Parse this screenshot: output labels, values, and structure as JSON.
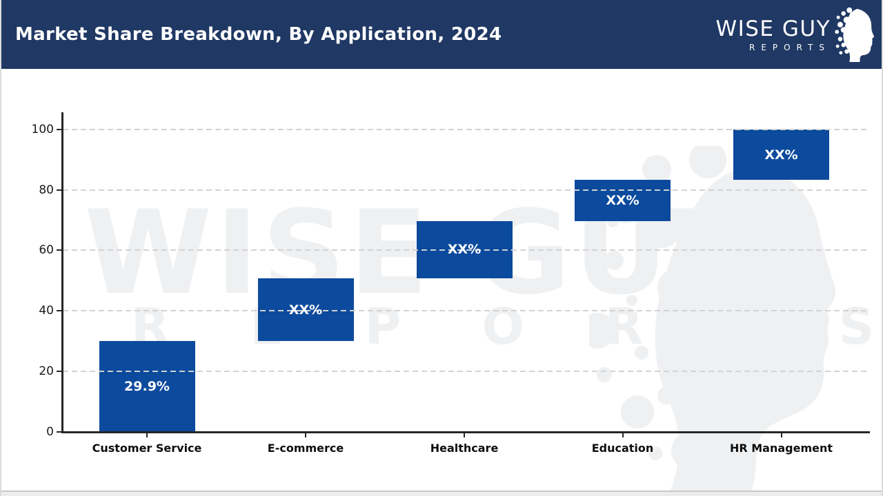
{
  "header": {
    "title": "Market Share Breakdown, By Application, 2024",
    "brand": {
      "name": "WISE GUY",
      "sub": "REPORTS"
    }
  },
  "watermark": {
    "line1": "WISE GUY",
    "line2": "R E P O R T S"
  },
  "chart_data": {
    "type": "bar",
    "subtype": "waterfall",
    "title": "Market Share Breakdown, By Application, 2024",
    "categories": [
      "Customer Service",
      "E-commerce",
      "Healthcare",
      "Education",
      "HR Management"
    ],
    "segments": [
      {
        "category": "Customer Service",
        "start": 0,
        "end": 29.9,
        "label": "29.9%"
      },
      {
        "category": "E-commerce",
        "start": 29.9,
        "end": 50.8,
        "label": "XX%"
      },
      {
        "category": "Healthcare",
        "start": 50.8,
        "end": 69.7,
        "label": "XX%"
      },
      {
        "category": "Education",
        "start": 69.7,
        "end": 83.3,
        "label": "XX%"
      },
      {
        "category": "HR Management",
        "start": 83.3,
        "end": 100,
        "label": "XX%"
      }
    ],
    "ylim": [
      0,
      100
    ],
    "yticks": [
      0,
      20,
      40,
      60,
      80,
      100
    ],
    "grid": "horizontal-dashed",
    "legend": "none",
    "bar_color": "#0c4a9d"
  },
  "colors": {
    "header_bg": "#203864",
    "bar": "#0c4a9d",
    "axis": "#262626",
    "grid": "#d2d2d2",
    "watermark": "#eff0f2",
    "tick_label": "#1a1a1a"
  }
}
